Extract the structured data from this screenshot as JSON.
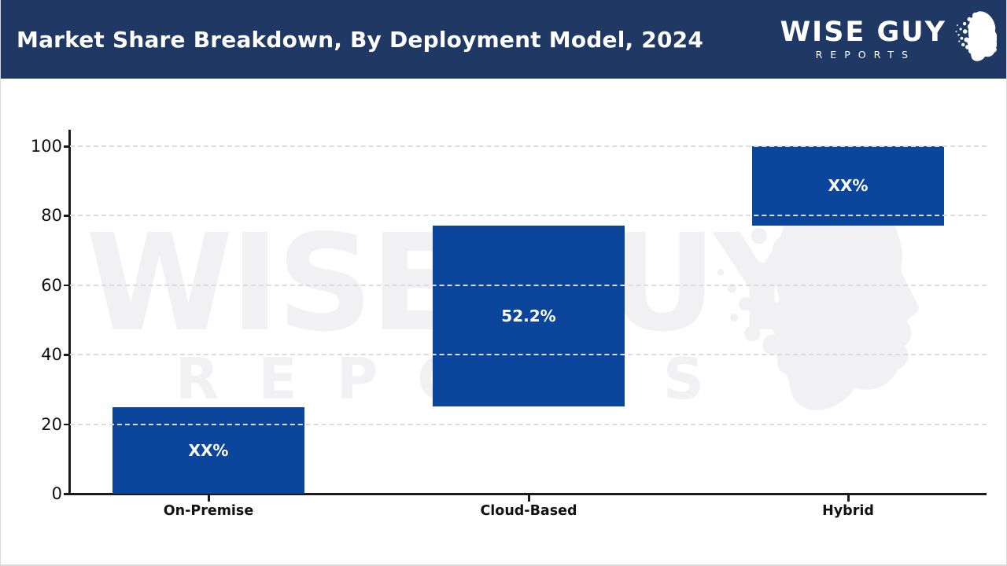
{
  "header": {
    "title": "Market Share Breakdown, By Deployment Model, 2024",
    "background_color": "#203864",
    "logo": {
      "line1": "WISE GUY",
      "line2": "REPORTS"
    }
  },
  "watermark": {
    "line1": "WISE GUY",
    "line2": "REPORTS"
  },
  "chart_data": {
    "type": "bar",
    "subtype": "waterfall-stacked-breakdown",
    "title": "Market Share Breakdown, By Deployment Model, 2024",
    "categories": [
      "On-Premise",
      "Cloud-Based",
      "Hybrid"
    ],
    "segments": [
      {
        "category": "On-Premise",
        "start": 0,
        "end": 25,
        "label": "XX%"
      },
      {
        "category": "Cloud-Based",
        "start": 25,
        "end": 77.2,
        "label": "52.2%"
      },
      {
        "category": "Hybrid",
        "start": 77.2,
        "end": 100,
        "label": "XX%"
      }
    ],
    "yticks": [
      0,
      20,
      40,
      60,
      80,
      100
    ],
    "ylim": [
      0,
      105
    ],
    "xlabel": "",
    "ylabel": "",
    "grid": true,
    "grid_style": "dashed",
    "legend": "none",
    "bar_color": "#0b459c",
    "bar_label_color": "#ffffff",
    "axis_color": "#1a1a1a",
    "grid_color": "#dcdcdc"
  }
}
